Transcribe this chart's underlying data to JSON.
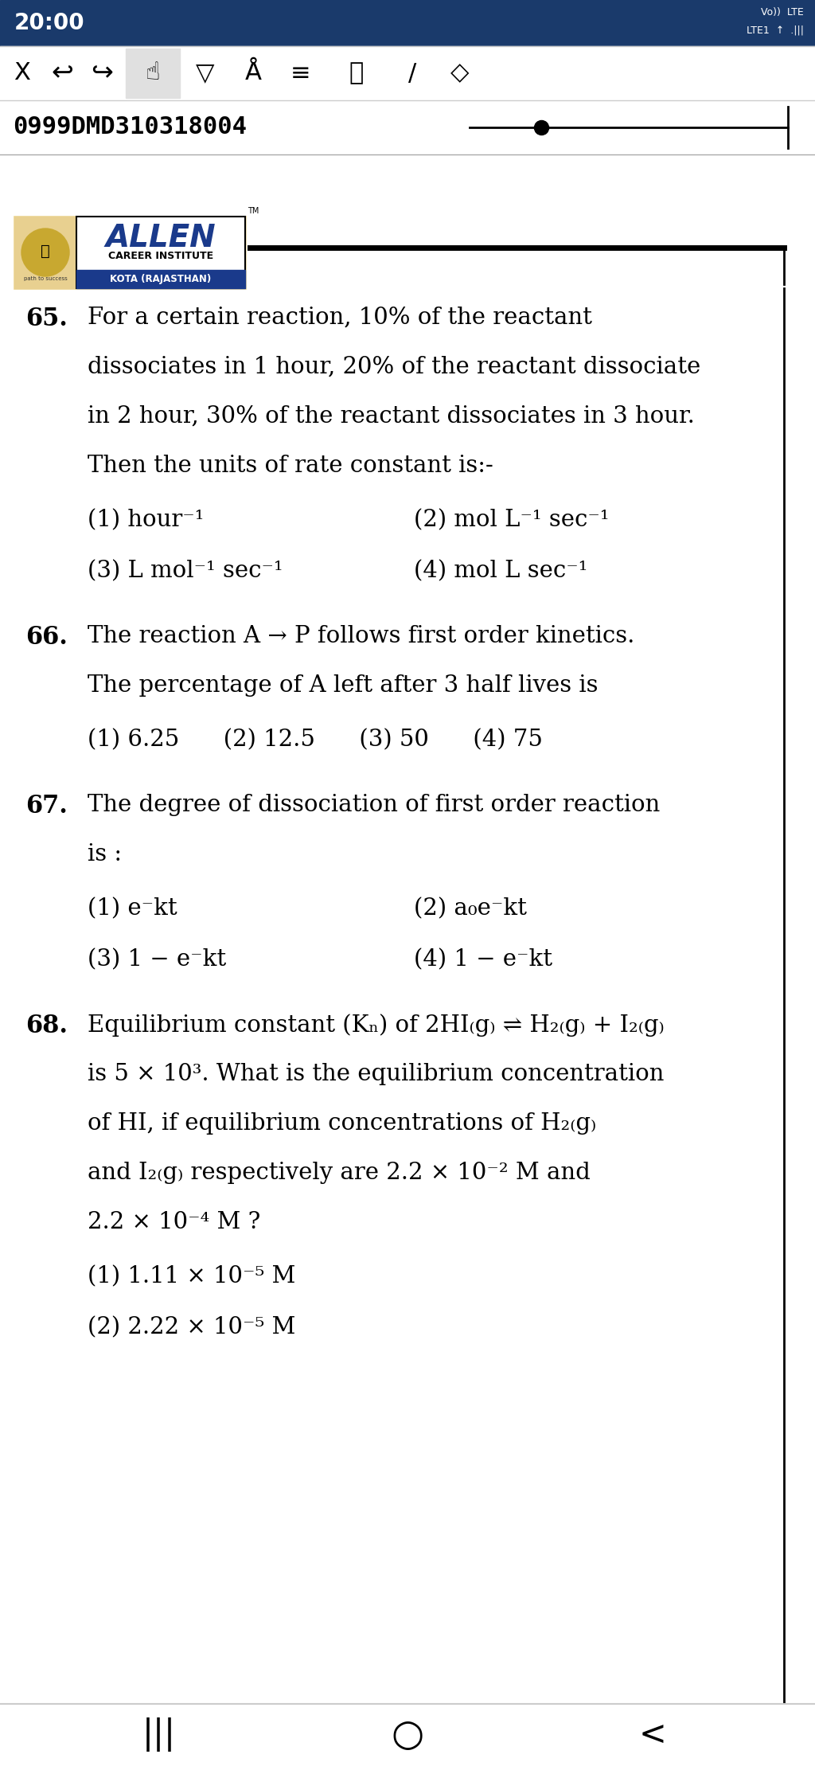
{
  "bg_color": "#ffffff",
  "status_bar_bg": "#1a3a6b",
  "status_bar_time": "20:00",
  "doc_id": "0999DMD310318004",
  "q65_lines": [
    "For a certain reaction, 10% of the reactant",
    "dissociates in 1 hour, 20% of the reactant dissociate",
    "in 2 hour, 30% of the reactant dissociates in 3 hour.",
    "Then the units of rate constant is:-"
  ],
  "q65_opt1": "(1) hour⁻¹",
  "q65_opt2": "(2) mol L⁻¹ sec⁻¹",
  "q65_opt3": "(3) L mol⁻¹ sec⁻¹",
  "q65_opt4": "(4) mol L sec⁻¹",
  "q66_lines": [
    "The reaction A → P follows first order kinetics.",
    "The percentage of A left after 3 half lives is"
  ],
  "q66_opts": "(1) 6.25      (2) 12.5      (3) 50      (4) 75",
  "q67_lines": [
    "The degree of dissociation of first order reaction",
    "is :"
  ],
  "q67_opt1": "(1) e⁻kt",
  "q67_opt2": "(2) a₀e⁻kt",
  "q67_opt3": "(3) 1 − e⁻kt",
  "q67_opt4": "(4) 1 − e⁻kt",
  "q68_lines": [
    "Equilibrium constant (Kₙ) of 2HI₍g₎ ⇌ H₂₍g₎ + I₂₍g₎",
    "is 5 × 10³. What is the equilibrium concentration",
    "of HI, if equilibrium concentrations of H₂₍g₎",
    "and I₂₍g₎ respectively are 2.2 × 10⁻² M and",
    "2.2 × 10⁻⁴ M ?"
  ],
  "q68_opt1": "(1) 1.11 × 10⁻⁵ M",
  "q68_opt2": "(2) 2.22 × 10⁻⁵ M"
}
